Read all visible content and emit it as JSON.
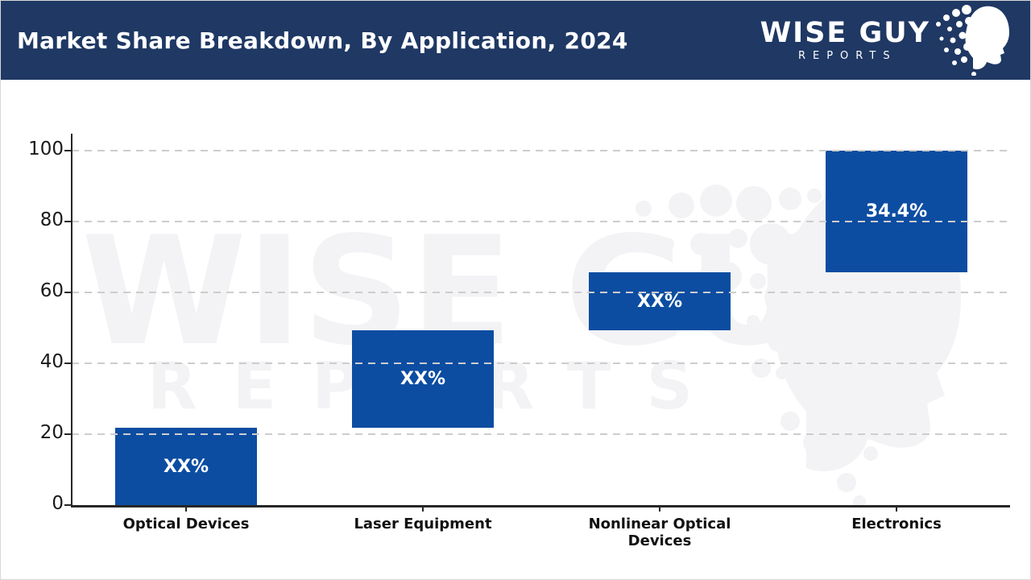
{
  "header": {
    "title": "Market Share Breakdown, By Application, 2024",
    "bg_color": "#1f3864",
    "logo": {
      "line1": "WISE GUY",
      "line2": "REPORTS"
    }
  },
  "watermark": {
    "line1": "WISE GUY",
    "line2": "REPORTS"
  },
  "chart_data": {
    "type": "bar",
    "subtype": "waterfall",
    "title": "Market Share Breakdown, By Application, 2024",
    "categories": [
      "Optical Devices",
      "Laser Equipment",
      "Nonlinear Optical\nDevices",
      "Electronics"
    ],
    "series": [
      {
        "name": "Market share (%)",
        "segments": [
          {
            "category": "Optical Devices",
            "start": 0,
            "end": 21.8,
            "value": 21.8,
            "label": "XX%"
          },
          {
            "category": "Laser Equipment",
            "start": 21.8,
            "end": 49.3,
            "value": 27.5,
            "label": "XX%"
          },
          {
            "category": "Nonlinear Optical Devices",
            "start": 49.3,
            "end": 65.6,
            "value": 16.3,
            "label": "XX%"
          },
          {
            "category": "Electronics",
            "start": 65.6,
            "end": 100,
            "value": 34.4,
            "label": "34.4%"
          }
        ]
      }
    ],
    "yticks": [
      0,
      20,
      40,
      60,
      80,
      100
    ],
    "ylim": [
      0,
      100
    ],
    "grid": "dashed-horizontal",
    "legend": "none",
    "bar_color": "#0c4da2",
    "bar_label_color": "#ffffff",
    "axis_color": "#262626",
    "grid_color": "#cdcdcd",
    "watermark_color": "#f3f3f5"
  }
}
